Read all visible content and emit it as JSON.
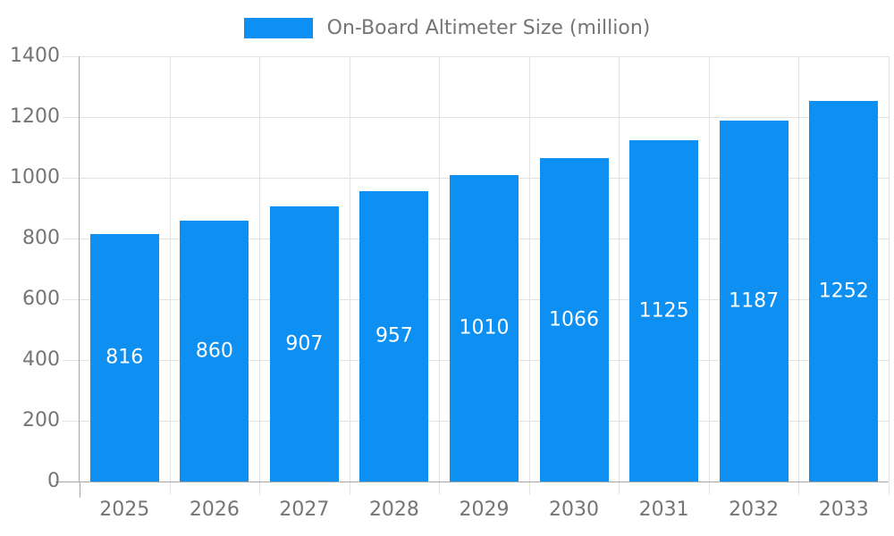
{
  "chart_data": {
    "type": "bar",
    "title": "On-Board Altimeter Size (million)",
    "legend": {
      "label": "On-Board Altimeter Size (million)",
      "position": "top-center"
    },
    "categories": [
      "2025",
      "2026",
      "2027",
      "2028",
      "2029",
      "2030",
      "2031",
      "2032",
      "2033"
    ],
    "values": [
      816,
      860,
      907,
      957,
      1010,
      1066,
      1125,
      1187,
      1252
    ],
    "xlabel": "",
    "ylabel": "",
    "ylim": [
      0,
      1400
    ],
    "yticks": [
      0,
      200,
      400,
      600,
      800,
      1000,
      1200,
      1400
    ],
    "grid": true,
    "value_labels": "inside-center",
    "colors": {
      "bar": "#0e90f2",
      "grid": "#e2e2e2",
      "axis": "#a6a6a6",
      "text": "#757575",
      "value_label": "#ffffff"
    }
  }
}
